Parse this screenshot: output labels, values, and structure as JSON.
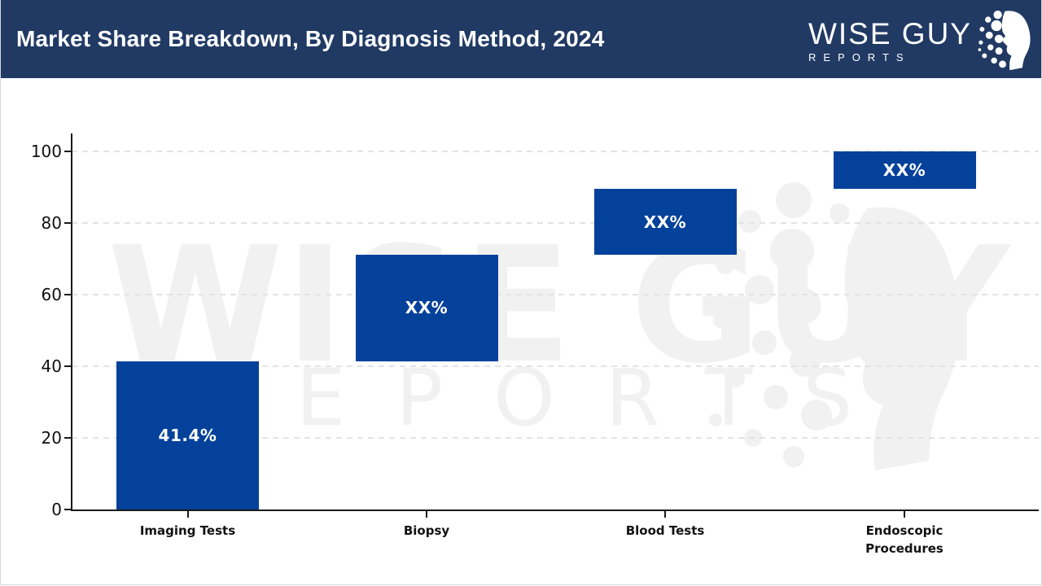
{
  "header": {
    "title": "Market Share Breakdown, By Diagnosis Method, 2024",
    "logo": {
      "line1": "WISE GUY",
      "line2": "REPORTS"
    }
  },
  "watermark": {
    "line1": "WISE GUY",
    "line2": "REPORTS"
  },
  "chart_data": {
    "type": "bar",
    "subtype": "waterfall",
    "title": "Market Share Breakdown, By Diagnosis Method, 2024",
    "categories": [
      "Imaging Tests",
      "Biopsy",
      "Blood Tests",
      "Endoscopic Procedures"
    ],
    "segments": [
      {
        "category": "Imaging Tests",
        "start": 0,
        "end": 41.4,
        "label": "41.4%"
      },
      {
        "category": "Biopsy",
        "start": 41.4,
        "end": 71.1,
        "label": "XX%"
      },
      {
        "category": "Blood Tests",
        "start": 71.1,
        "end": 89.5,
        "label": "XX%"
      },
      {
        "category": "Endoscopic Procedures",
        "start": 89.5,
        "end": 100,
        "label": "XX%"
      }
    ],
    "xlabel": "",
    "ylabel": "",
    "y_ticks": [
      0,
      20,
      40,
      60,
      80,
      100
    ],
    "ylim": [
      0,
      105
    ],
    "grid": "horizontal-dashed",
    "legend": "none",
    "bar_color": "#04419B",
    "bar_label_color": "#ffffff",
    "header_color": "#213A64",
    "watermark_color": "#f1f1f1"
  }
}
